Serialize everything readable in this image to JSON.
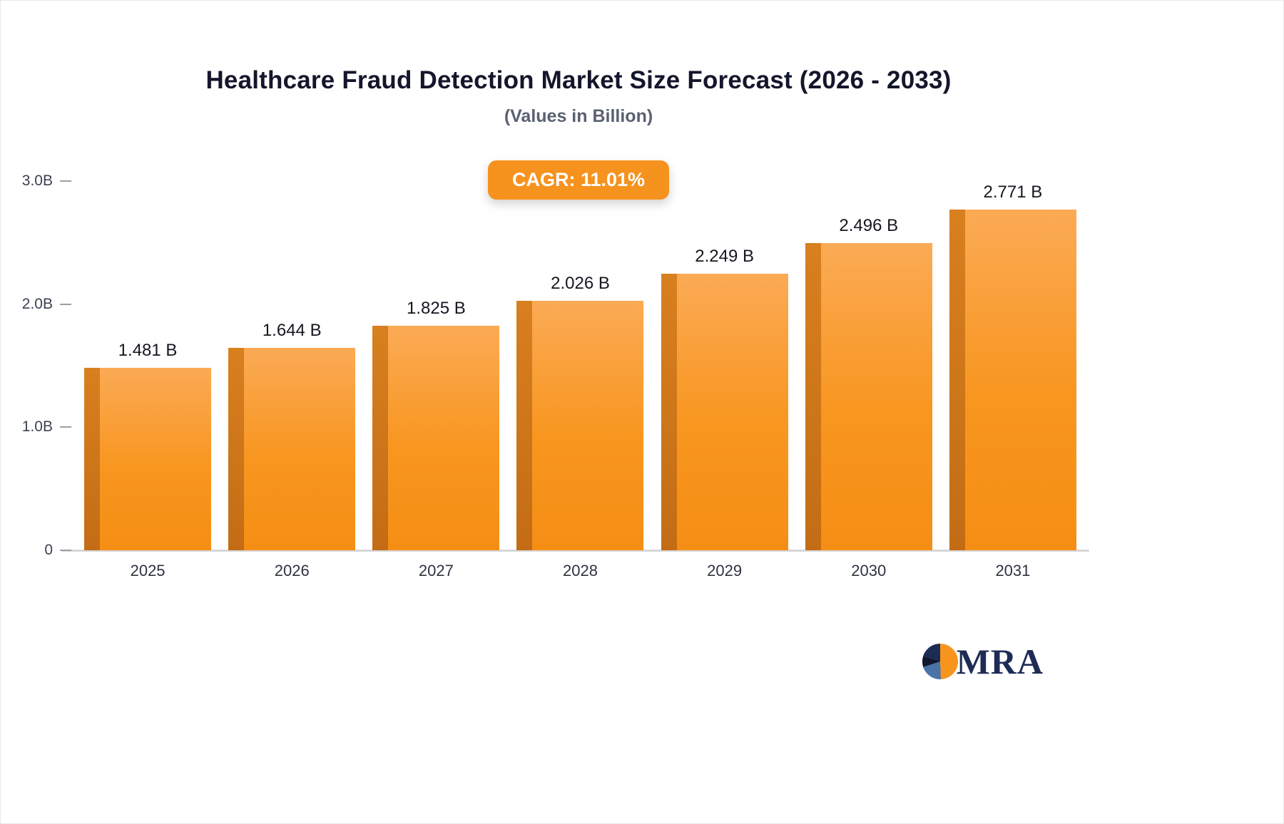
{
  "chart_data": {
    "type": "bar",
    "title": "Healthcare Fraud Detection Market Size Forecast (2026 - 2033)",
    "subtitle": "(Values in Billion)",
    "cagr_label": "CAGR: 11.01%",
    "categories": [
      "2025",
      "2026",
      "2027",
      "2028",
      "2029",
      "2030",
      "2031"
    ],
    "values": [
      1.481,
      1.644,
      1.825,
      2.026,
      2.249,
      2.496,
      2.771
    ],
    "value_labels": [
      "1.481 B",
      "1.644 B",
      "1.825 B",
      "2.026 B",
      "2.249 B",
      "2.496 B",
      "2.771 B"
    ],
    "xlabel": "",
    "ylabel": "",
    "ylim": [
      0,
      3
    ],
    "yticks": [
      {
        "label": "3.0B",
        "value": 3.0
      },
      {
        "label": "2.0B",
        "value": 2.0
      },
      {
        "label": "1.0B",
        "value": 1.0
      },
      {
        "label": "0",
        "value": 0.0
      }
    ],
    "grid": false,
    "legend": false,
    "bar_color": "#F7941E",
    "bar_side_color": "#C96E17"
  },
  "branding": {
    "logo_text": "MRA",
    "logo_accent_color": "#F7941E",
    "logo_text_color": "#1E2C55"
  }
}
